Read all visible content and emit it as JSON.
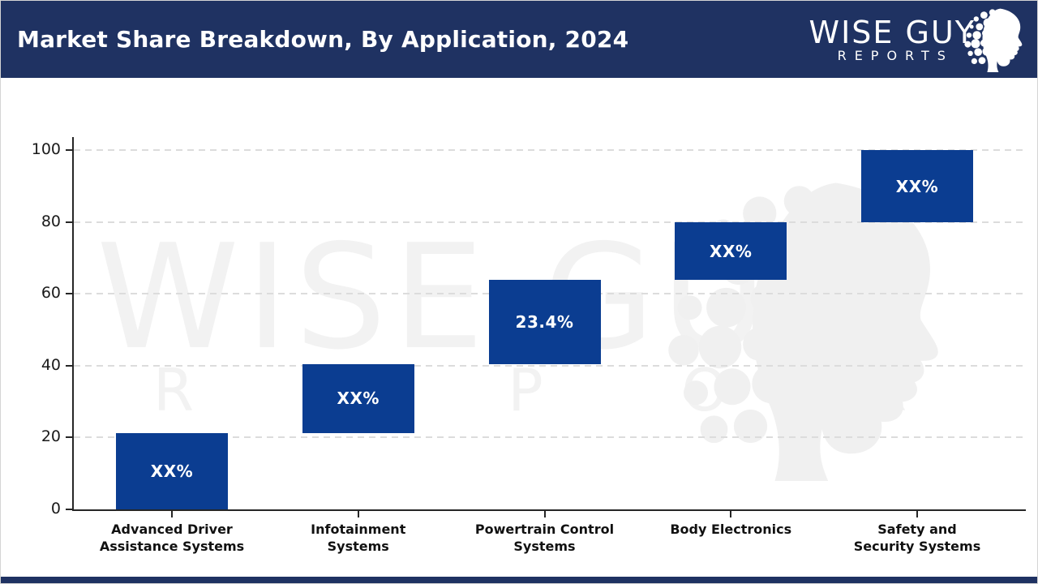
{
  "page": {
    "background": "#ffffff",
    "accent_navy": "#1f3262",
    "border_gray": "#d4d4d4"
  },
  "header": {
    "title": "Market Share Breakdown, By Application, 2024",
    "logo_line1": "WISE GUY",
    "logo_line2": "REPORTS"
  },
  "watermark": {
    "line1": "WISE GUY",
    "line2": "R E P O R T S"
  },
  "chart_data": {
    "type": "bar",
    "subtype": "floating-waterfall",
    "title": "Market Share Breakdown, By Application, 2024",
    "categories": [
      "Advanced Driver Assistance Systems",
      "Infotainment Systems",
      "Powertrain Control Systems",
      "Body Electronics",
      "Safety and Security Systems"
    ],
    "category_lines": [
      [
        "Advanced Driver",
        "Assistance Systems"
      ],
      [
        "Infotainment",
        "Systems"
      ],
      [
        "Powertrain Control",
        "Systems"
      ],
      [
        "Body Electronics"
      ],
      [
        "Safety and",
        "Security Systems"
      ]
    ],
    "bar_labels": [
      "XX%",
      "XX%",
      "23.4%",
      "XX%",
      "XX%"
    ],
    "bar_bottoms": [
      0,
      21.3,
      40.5,
      63.9,
      79.8
    ],
    "bar_tops": [
      21.3,
      40.5,
      63.9,
      79.8,
      100
    ],
    "segment_values": [
      21.3,
      19.2,
      23.4,
      15.9,
      20.2
    ],
    "yticks": [
      0,
      20,
      40,
      60,
      80,
      100
    ],
    "ylim": [
      0,
      100
    ],
    "xlabel": "",
    "ylabel": "",
    "legend": "none",
    "grid": "horizontal-dashed",
    "grid_color": "#dcdcdc",
    "bar_color": "#0b3d91",
    "bar_label_color": "#ffffff",
    "axis_color": "#262626"
  }
}
